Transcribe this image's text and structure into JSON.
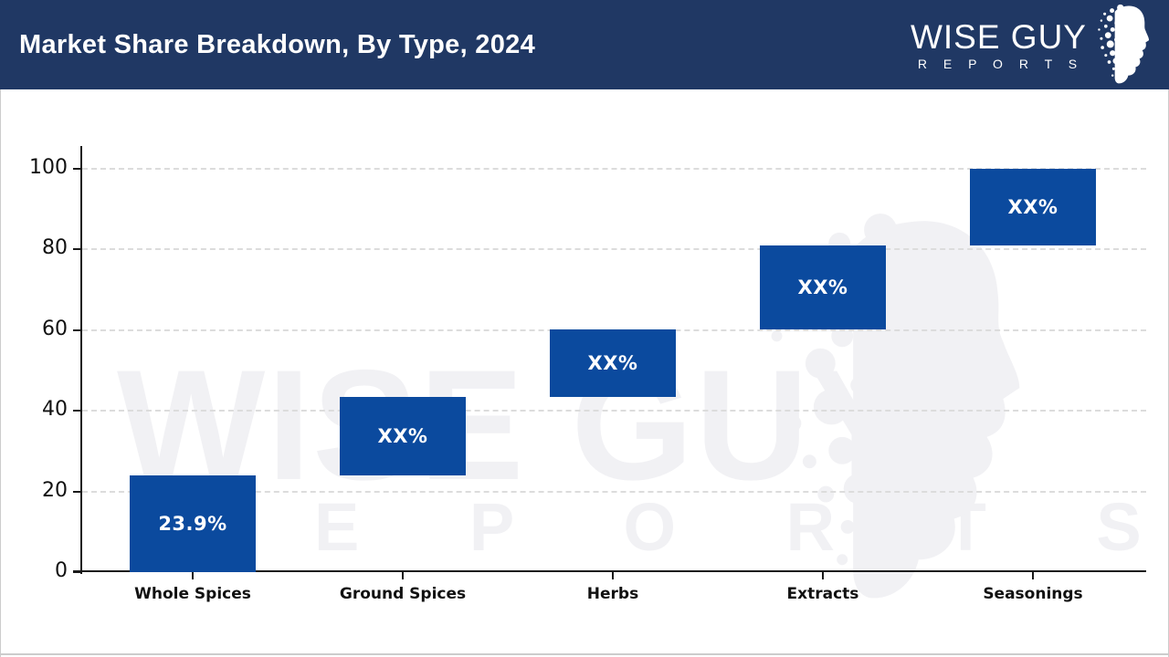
{
  "header": {
    "title": "Market Share Breakdown, By Type, 2024",
    "bg_color": "#203864",
    "logo": {
      "line1": "WISE GUY",
      "line2": "R E P O R T S"
    }
  },
  "watermark": {
    "line1": "WISE GUY",
    "line2": "R E P O R T S"
  },
  "chart_data": {
    "type": "bar",
    "subtype": "waterfall",
    "title": "Market Share Breakdown, By Type, 2024",
    "categories": [
      "Whole Spices",
      "Ground Spices",
      "Herbs",
      "Extracts",
      "Seasonings"
    ],
    "series": [
      {
        "name": "Market Share",
        "segments": [
          {
            "start": 0,
            "end": 23.9,
            "label": "23.9%"
          },
          {
            "start": 23.9,
            "end": 43.5,
            "label": "XX%"
          },
          {
            "start": 43.5,
            "end": 60.2,
            "label": "XX%"
          },
          {
            "start": 60.2,
            "end": 80.9,
            "label": "XX%"
          },
          {
            "start": 80.9,
            "end": 100,
            "label": "XX%"
          }
        ]
      }
    ],
    "xlabel": "",
    "ylabel": "",
    "yticks": [
      0,
      20,
      40,
      60,
      80,
      100
    ],
    "ylim": [
      0,
      105.7
    ],
    "grid": "horizontal-dashed",
    "bar_color": "#0b4a9e",
    "bar_label_color": "#ffffff",
    "axis_color": "#1a1a1a",
    "gridline_color": "#dcdcdc"
  }
}
